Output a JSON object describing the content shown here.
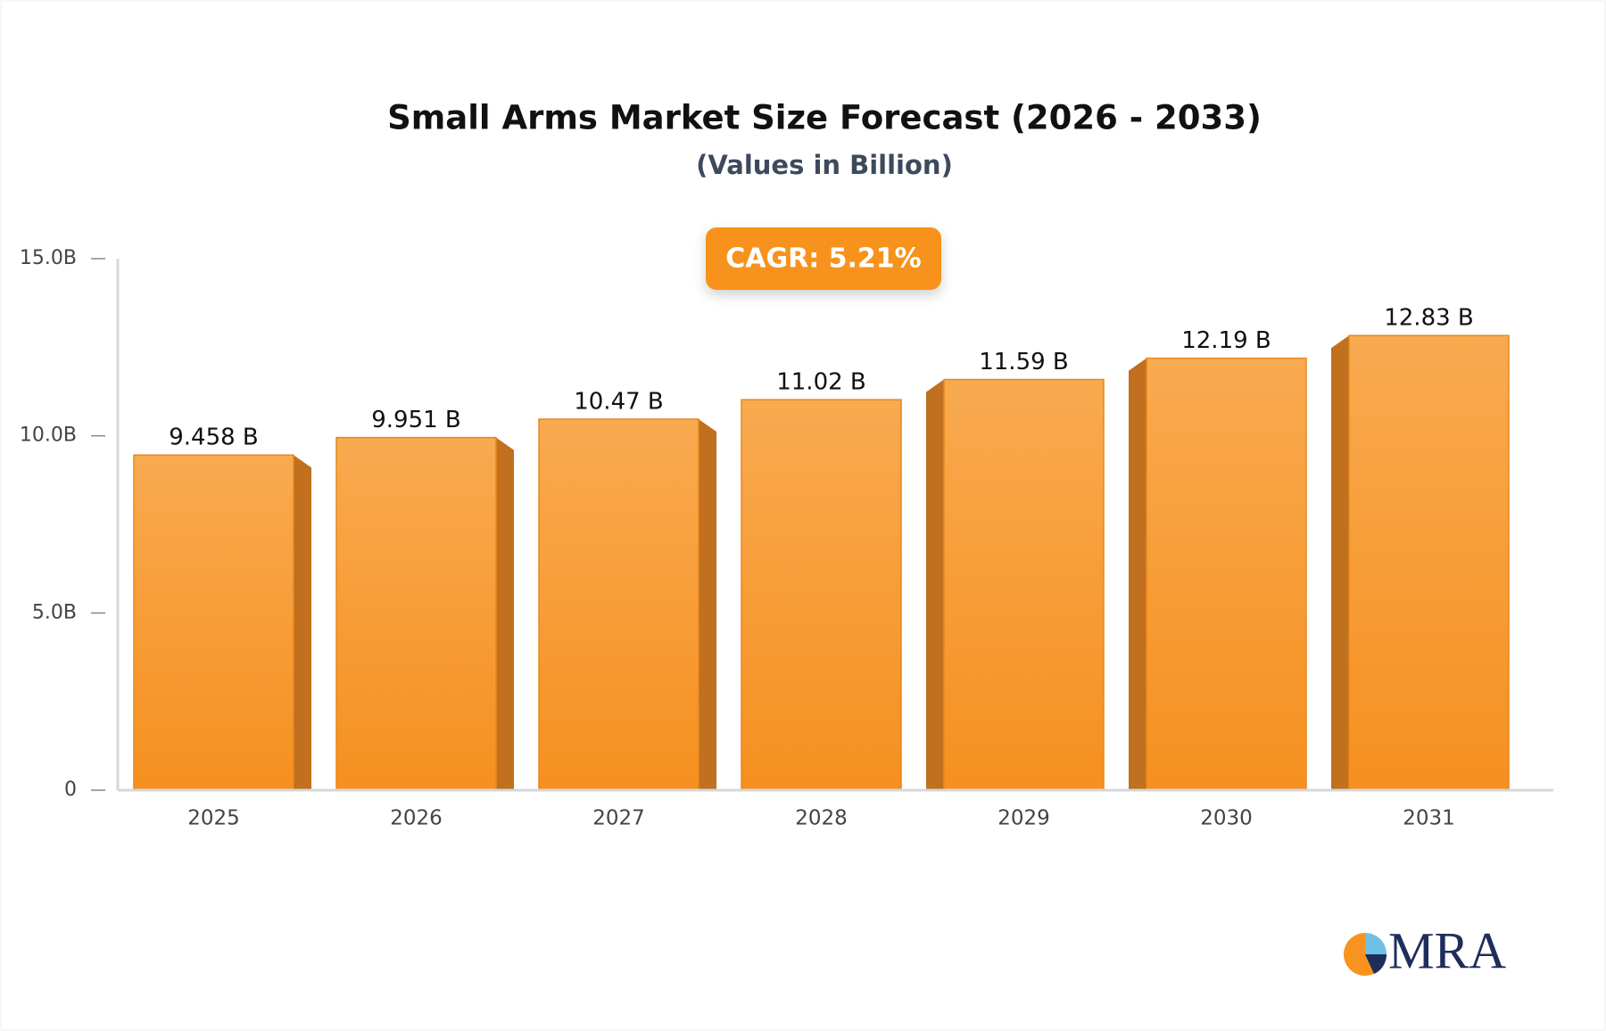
{
  "chart_data": {
    "type": "bar3d",
    "title": "Small Arms Market Size Forecast (2026 - 2033)",
    "subtitle": "(Values in Billion)",
    "annotation": "CAGR: 5.21%",
    "categories": [
      "2025",
      "2026",
      "2027",
      "2028",
      "2029",
      "2030",
      "2031"
    ],
    "values": [
      9.458,
      9.951,
      10.47,
      11.02,
      11.59,
      12.19,
      12.83
    ],
    "value_labels": [
      "9.458 B",
      "9.951 B",
      "10.47 B",
      "11.02 B",
      "11.59 B",
      "12.19 B",
      "12.83 B"
    ],
    "color": "#f7a03d",
    "ylim": [
      0,
      15
    ],
    "yticks": [
      0,
      {
        "value": 5,
        "label": "5.0B"
      },
      {
        "value": 10,
        "label": "10.0B"
      },
      {
        "value": 15,
        "label": "15.0B"
      }
    ],
    "grid": false
  },
  "logo": "MRA"
}
